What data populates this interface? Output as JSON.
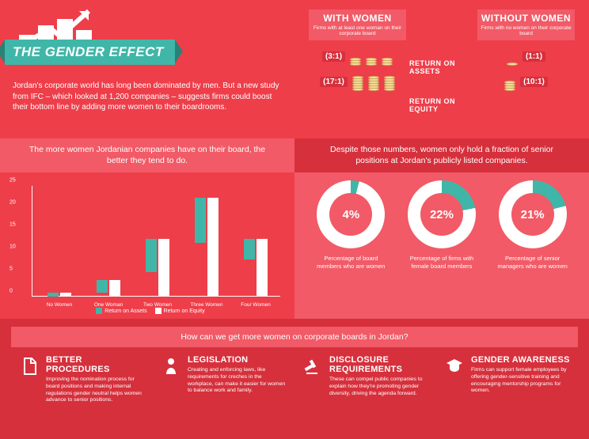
{
  "colors": {
    "red": "#ee3e4a",
    "pink": "#f15a66",
    "dark": "#d6303c",
    "teal": "#3fb6a8",
    "white": "#ffffff",
    "coin": "#f9da9a"
  },
  "header": {
    "title": "THE GENDER EFFECT",
    "intro": "Jordan's corporate world has long been dominated by men. But a new study from IFC – which looked at 1,200 companies – suggests firms could boost their bottom line by adding more women to their boardrooms."
  },
  "comparison": {
    "with": {
      "heading": "WITH WOMEN",
      "sub": "Firms with at least one woman on their corporate board",
      "assets_ratio": "(3:1)",
      "equity_ratio": "(17:1)"
    },
    "without": {
      "heading": "WITHOUT WOMEN",
      "sub": "Firms with no women on their corporate board",
      "assets_ratio": "(1:1)",
      "equity_ratio": "(10:1)"
    },
    "metric_assets": "RETURN ON ASSETS",
    "metric_equity": "RETURN ON EQUITY"
  },
  "bar_chart": {
    "heading": "The more women Jordanian companies have on their board, the better they tend to do.",
    "ylim": [
      0,
      25
    ],
    "yticks": [
      0,
      5,
      10,
      15,
      20,
      25
    ],
    "categories": [
      "No Women",
      "One Woman",
      "Two Women",
      "Three Women",
      "Four Women"
    ],
    "series": [
      {
        "name": "Return on Assets",
        "color": "#3fb6a8",
        "values": [
          1,
          3,
          8,
          11,
          5
        ]
      },
      {
        "name": "Return on Equity",
        "color": "#ffffff",
        "values": [
          1,
          4,
          14,
          24,
          14
        ]
      }
    ],
    "legend_assets": "Return on Assets",
    "legend_equity": "Return on Equity"
  },
  "donuts": {
    "heading": "Despite those numbers, women only hold a fraction of senior positions at Jordan's publicly listed companies.",
    "items": [
      {
        "percent": 4,
        "label": "4%",
        "caption": "Percentage of board members who are women"
      },
      {
        "percent": 22,
        "label": "22%",
        "caption": "Percentage of firms with female board members"
      },
      {
        "percent": 21,
        "label": "21%",
        "caption": "Percentage of senior managers who are women"
      }
    ],
    "ring_color": "#ffffff",
    "slice_color": "#3fb6a8"
  },
  "bottom": {
    "heading": "How can we get more women on corporate boards in Jordan?",
    "items": [
      {
        "icon": "file",
        "title": "BETTER PROCEDURES",
        "body": "Improving the nomination process for board positions and making internal regulations gender neutral helps women advance to senior positions."
      },
      {
        "icon": "baby",
        "title": "LEGISLATION",
        "body": "Creating and enforcing laws, like requirements for creches in the workplace, can make it easier for women to balance work and family."
      },
      {
        "icon": "gavel",
        "title": "DISCLOSURE REQUIREMENTS",
        "body": "These can compel public companies to explain how they're promoting gender diversity, driving the agenda forward."
      },
      {
        "icon": "grad",
        "title": "GENDER AWARENESS",
        "body": "Firms can support female employees by offering gender-sensitive training and encouraging mentorship programs for women."
      }
    ]
  }
}
